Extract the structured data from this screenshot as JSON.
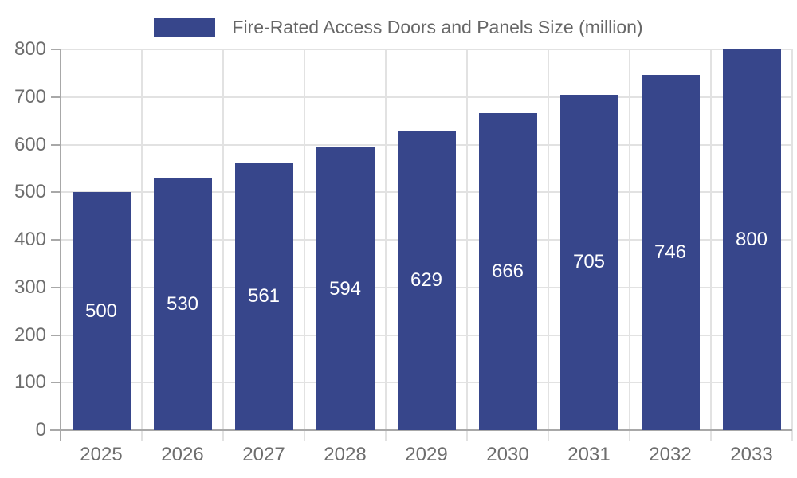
{
  "legend": {
    "label": "Fire-Rated Access Doors and Panels Size (million)"
  },
  "colors": {
    "bar": "#37468B",
    "grid": "#e2e2e2",
    "axis_line": "#a8a8a8",
    "tick_text": "#6e6e6e",
    "legend_text": "#666666",
    "value_label_text": "#ffffff"
  },
  "chart_data": {
    "type": "bar",
    "title": "Fire-Rated Access Doors and Panels Size (million)",
    "categories": [
      "2025",
      "2026",
      "2027",
      "2028",
      "2029",
      "2030",
      "2031",
      "2032",
      "2033"
    ],
    "values": [
      500,
      530,
      561,
      594,
      629,
      666,
      705,
      746,
      800
    ],
    "xlabel": "",
    "ylabel": "",
    "ylim": [
      0,
      800
    ],
    "yticks": [
      0,
      100,
      200,
      300,
      400,
      500,
      600,
      700,
      800
    ],
    "grid": true,
    "legend_position": "top-center",
    "value_labels": "inside-center"
  }
}
